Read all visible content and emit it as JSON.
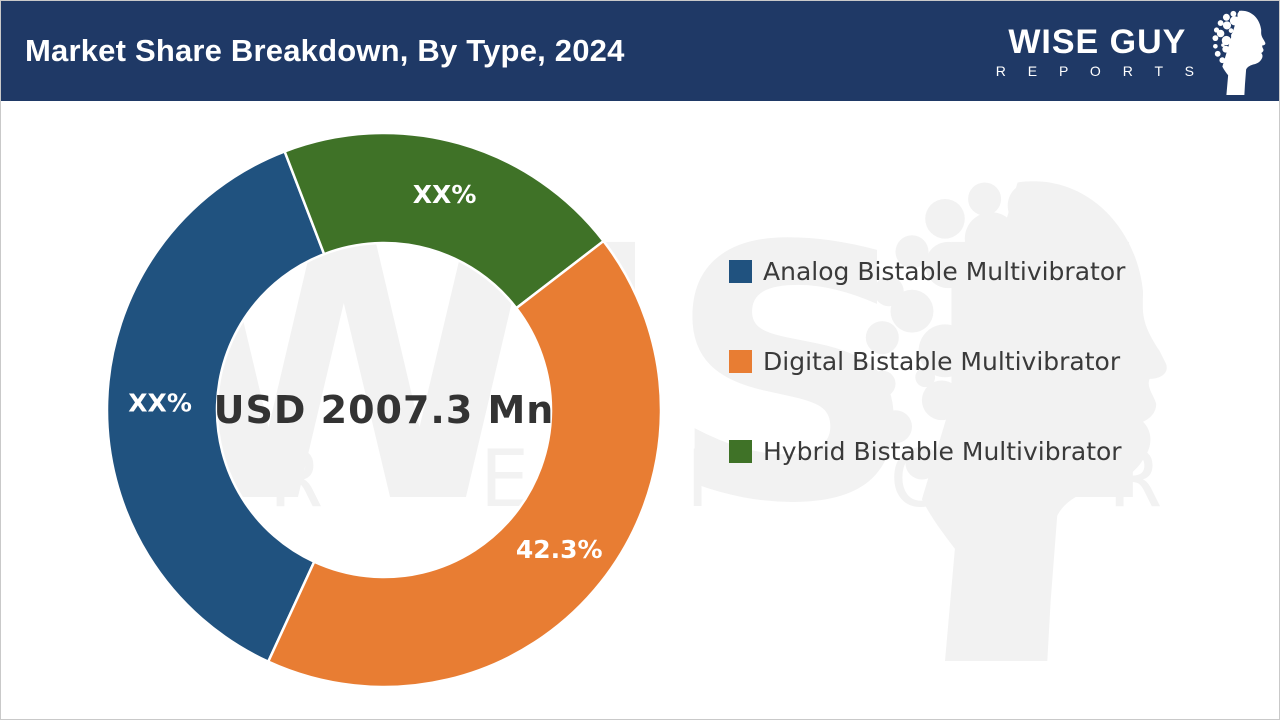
{
  "header": {
    "bg_color": "#1F3966",
    "title": "Market Share Breakdown, By Type, 2024",
    "logo": {
      "top_text": "WISE GUY",
      "bottom_text": "R E P O R T S"
    }
  },
  "watermark": {
    "line1": "WISE GUY",
    "line2": "R E P O R T S"
  },
  "chart_data": {
    "type": "pie",
    "subtype": "donut",
    "title": "Market Share Breakdown, By Type, 2024",
    "center_label": "USD 2007.3 Mn",
    "legend_position": "right",
    "start_angle_deg": -114.7,
    "draw_order": [
      0,
      2,
      1
    ],
    "segments": [
      {
        "name": "Analog Bistable Multivibrator",
        "display_label": "XX%",
        "value_pct": 37.3,
        "color": "#20527F"
      },
      {
        "name": "Digital Bistable Multivibrator",
        "display_label": "42.3%",
        "value_pct": 42.3,
        "color": "#E87D33"
      },
      {
        "name": "Hybrid Bistable Multivibrator",
        "display_label": "XX%",
        "value_pct": 20.4,
        "color": "#3F7227"
      }
    ]
  }
}
